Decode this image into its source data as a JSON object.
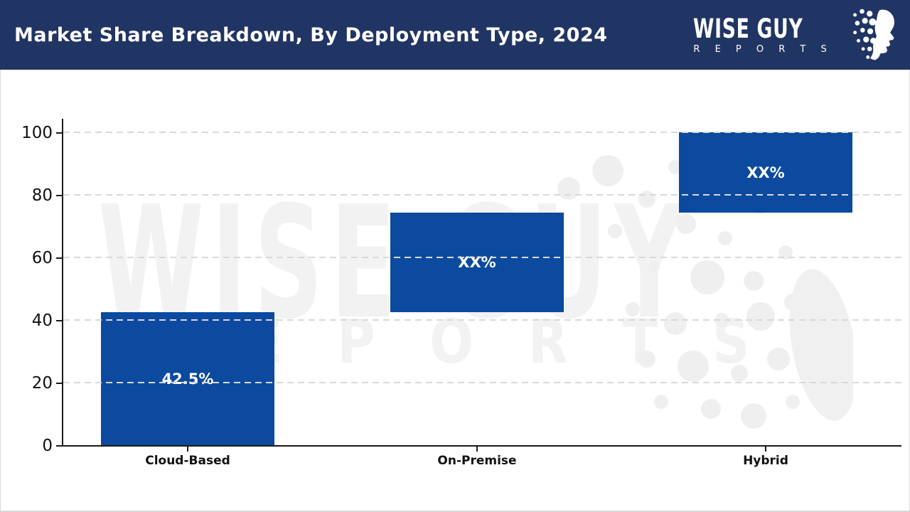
{
  "header": {
    "title": "Market Share Breakdown, By Deployment Type, 2024",
    "bg_color": "#213564",
    "logo": {
      "primary": "WISE GUY",
      "secondary": "R E P O R T S"
    }
  },
  "watermark": {
    "primary": "WISE GUY",
    "secondary": "R E P O R T S"
  },
  "chart_data": {
    "type": "bar",
    "variant": "floating-segment waterfall of market share",
    "title": "Market Share Breakdown, By Deployment Type, 2024",
    "categories": [
      "Cloud-Based",
      "On-Premise",
      "Hybrid"
    ],
    "segments": [
      {
        "category": "Cloud-Based",
        "start": 0,
        "end": 42.5,
        "label": "42.5%"
      },
      {
        "category": "On-Premise",
        "start": 42.5,
        "end": 74.3,
        "label": "XX%"
      },
      {
        "category": "Hybrid",
        "start": 74.3,
        "end": 100,
        "label": "XX%"
      }
    ],
    "xlabel": "",
    "ylabel": "",
    "ylim": [
      0,
      100
    ],
    "yticks": [
      0,
      20,
      40,
      60,
      80,
      100
    ],
    "grid": "horizontal dashed gridlines, drawn over bars",
    "legend": "none",
    "colors": {
      "bar": "#0b4a9e",
      "bar_label": "#ffffff",
      "axis": "#1a1a1a",
      "gridline": "#d9d9d9",
      "header_bg": "#213564",
      "watermark": "#f2f2f2"
    }
  }
}
